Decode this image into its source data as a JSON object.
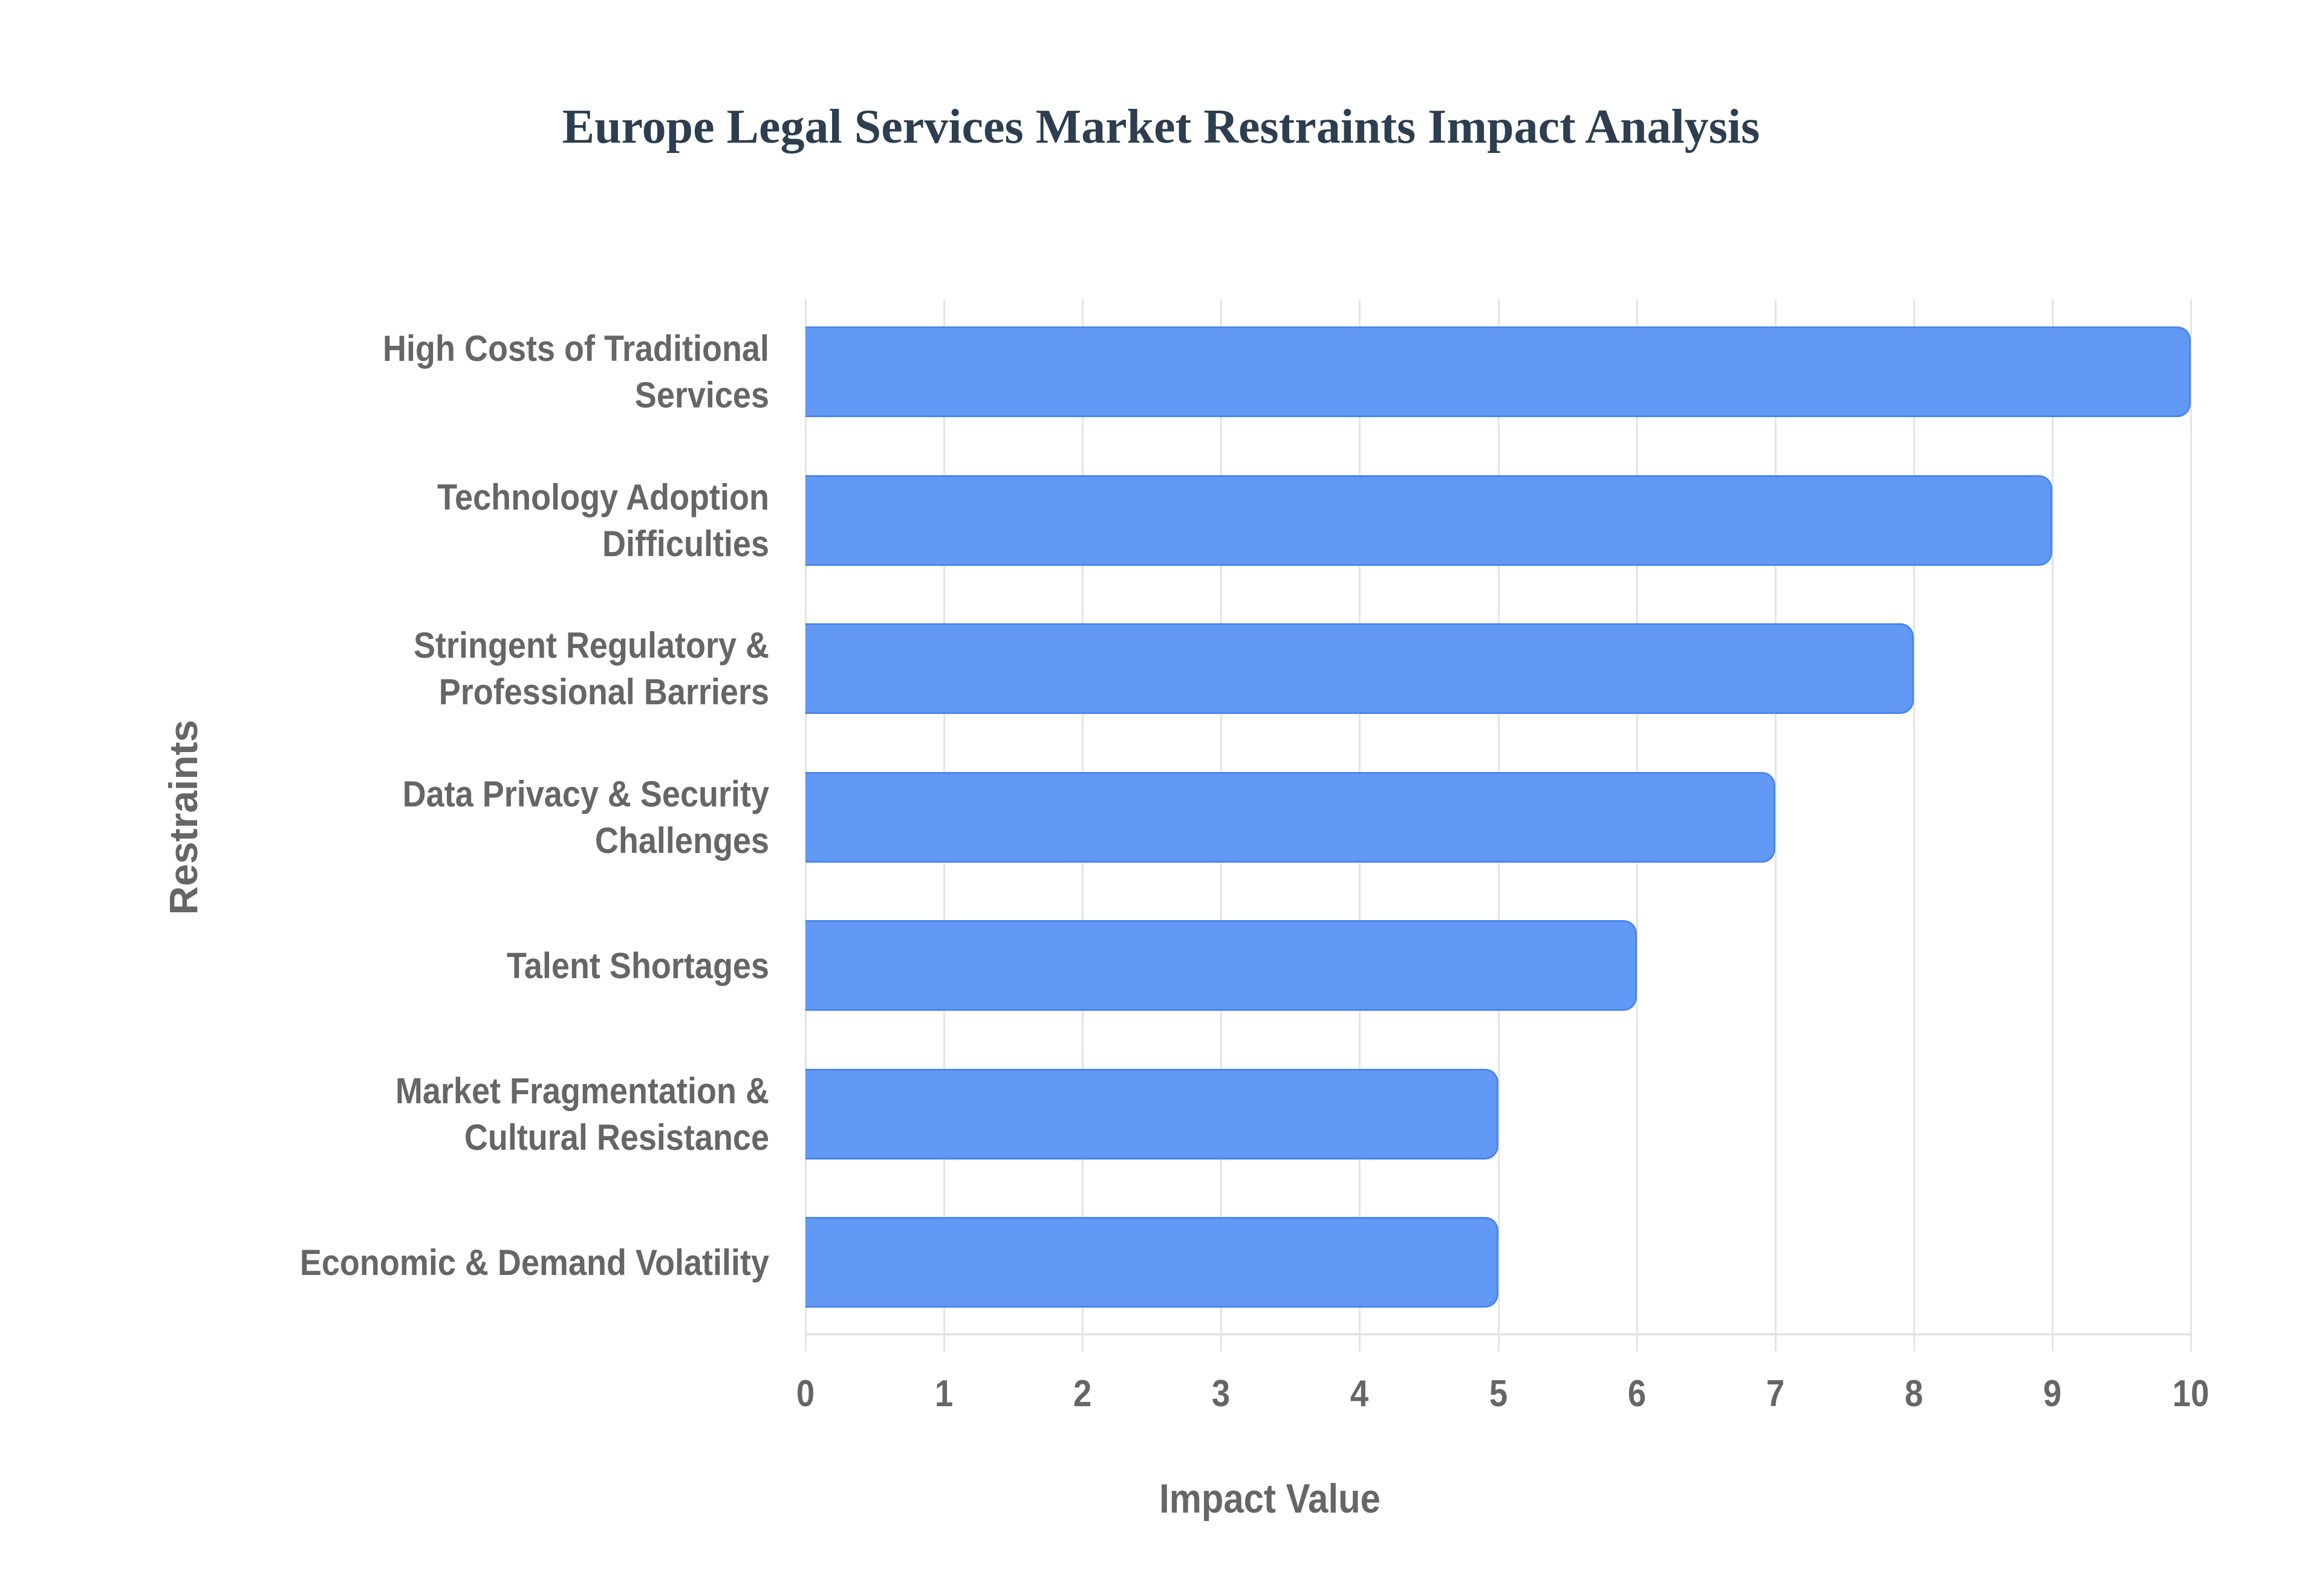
{
  "chart": {
    "title": "Europe Legal Services Market Restraints Impact Analysis",
    "xlabel": "Impact Value",
    "ylabel": "Restraints",
    "bar_color": "#6199f5",
    "bar_border_color": "#4a86ec",
    "ticks": [
      "0",
      "1",
      "2",
      "3",
      "4",
      "5",
      "6",
      "7",
      "8",
      "9",
      "10"
    ],
    "categories": [
      {
        "line1": "High Costs of Traditional",
        "line2": "Services",
        "value": 10
      },
      {
        "line1": "Technology Adoption",
        "line2": "Difficulties",
        "value": 9
      },
      {
        "line1": "Stringent Regulatory &",
        "line2": "Professional Barriers",
        "value": 8
      },
      {
        "line1": "Data Privacy & Security",
        "line2": "Challenges",
        "value": 7
      },
      {
        "line1": "Talent Shortages",
        "line2": "",
        "value": 6
      },
      {
        "line1": "Market Fragmentation &",
        "line2": "Cultural Resistance",
        "value": 5
      },
      {
        "line1": "Economic & Demand Volatility",
        "line2": "",
        "value": 5
      }
    ]
  },
  "chart_data": {
    "type": "bar",
    "orientation": "horizontal",
    "title": "Europe Legal Services Market Restraints Impact Analysis",
    "xlabel": "Impact Value",
    "ylabel": "Restraints",
    "categories": [
      "High Costs of Traditional Services",
      "Technology Adoption Difficulties",
      "Stringent Regulatory & Professional Barriers",
      "Data Privacy & Security Challenges",
      "Talent Shortages",
      "Market Fragmentation & Cultural Resistance",
      "Economic & Demand Volatility"
    ],
    "values": [
      10,
      9,
      8,
      7,
      6,
      5,
      5
    ],
    "xlim": [
      0,
      10
    ],
    "xticks": [
      0,
      1,
      2,
      3,
      4,
      5,
      6,
      7,
      8,
      9,
      10
    ],
    "grid": true,
    "legend": null,
    "colors": [
      "#6199f5"
    ]
  }
}
